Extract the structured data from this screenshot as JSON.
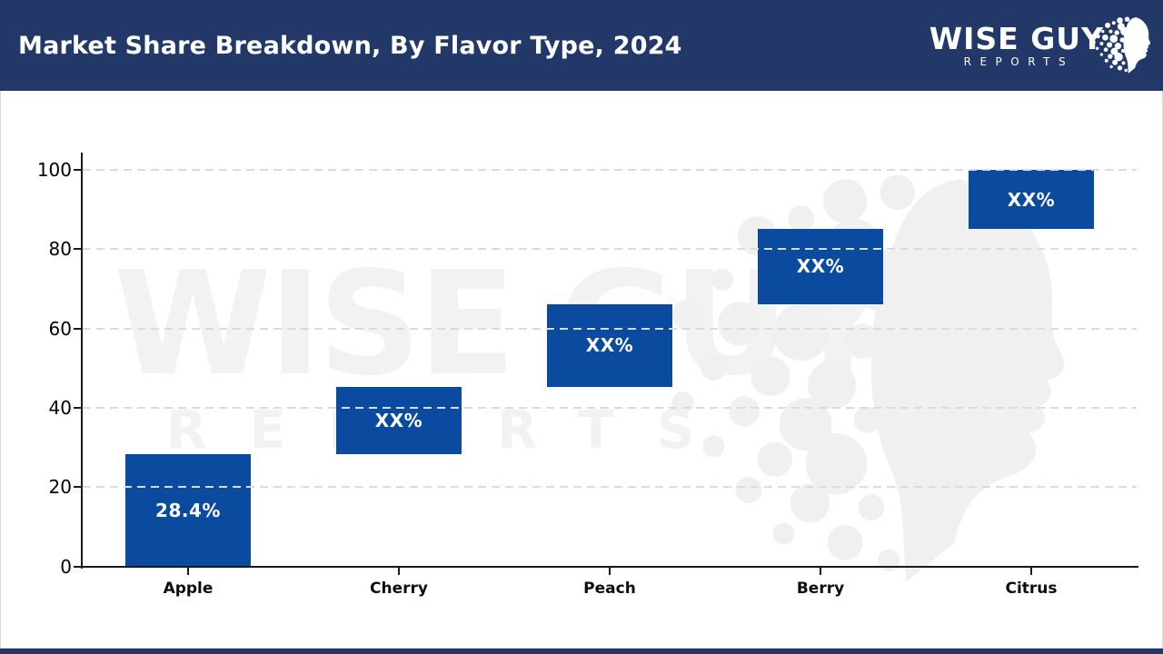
{
  "header": {
    "title": "Market Share Breakdown, By Flavor Type, 2024",
    "logo": {
      "line1": "WISE GUY",
      "line2": "REPORTS"
    }
  },
  "watermark": {
    "line1": "WISE GUY",
    "line2": "REPORTS"
  },
  "colors": {
    "header_bg": "#213869",
    "footer_bg": "#213869",
    "bar": "#0a4ba0",
    "bar_label_text": "#ffffff",
    "grid": "#dbdbdb",
    "axis": "#1a1a1a",
    "watermark": "#f2f2f3",
    "watermark_head": "#f0f0f1",
    "title_text": "#ffffff"
  },
  "chart_data": {
    "type": "bar",
    "subtype": "waterfall",
    "title": "Market Share Breakdown, By Flavor Type, 2024",
    "xlabel": "",
    "ylabel": "",
    "unit": "%",
    "categories": [
      "Apple",
      "Cherry",
      "Peach",
      "Berry",
      "Citrus"
    ],
    "segments": [
      {
        "category": "Apple",
        "start": 0,
        "end": 28.4,
        "label": "28.4%"
      },
      {
        "category": "Cherry",
        "start": 28.4,
        "end": 45.2,
        "label": "XX%"
      },
      {
        "category": "Peach",
        "start": 45.2,
        "end": 66.2,
        "label": "XX%"
      },
      {
        "category": "Berry",
        "start": 66.2,
        "end": 85.1,
        "label": "XX%"
      },
      {
        "category": "Citrus",
        "start": 85.1,
        "end": 100.0,
        "label": "XX%"
      }
    ],
    "yticks": [
      0,
      20,
      40,
      60,
      80,
      100
    ],
    "ylim": [
      0,
      105
    ],
    "grid": "horizontal-dashed",
    "legend": "none"
  }
}
